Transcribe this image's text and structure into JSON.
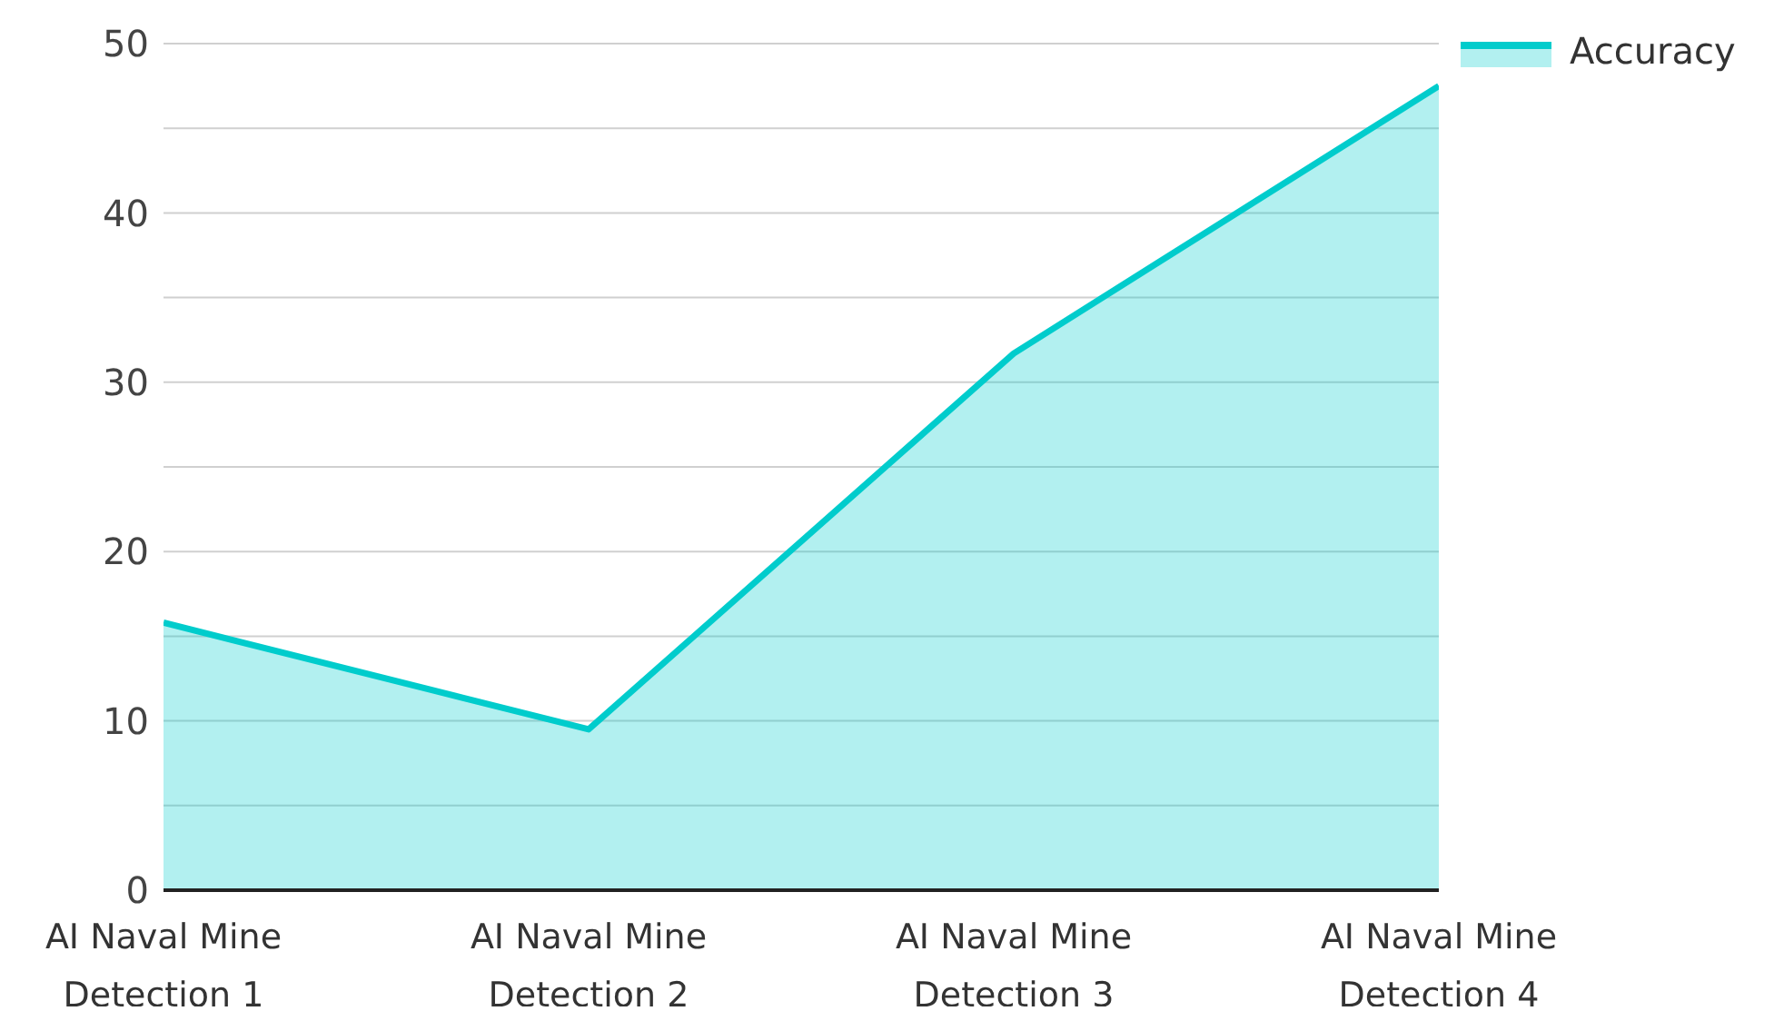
{
  "chart_data": {
    "type": "area",
    "categories": [
      "AI Naval Mine Detection 1",
      "AI Naval Mine Detection 2",
      "AI Naval Mine Detection 3",
      "AI Naval Mine Detection 4"
    ],
    "series": [
      {
        "name": "Accuracy",
        "color": "#00cccc",
        "values": [
          15.8,
          9.5,
          31.7,
          47.5
        ]
      }
    ],
    "ylim": [
      0,
      50
    ],
    "yticks": [
      0,
      {
        "value": 5,
        "label": null
      },
      10,
      {
        "value": 15,
        "label": null
      },
      20,
      {
        "value": 25,
        "label": null
      },
      30,
      {
        "value": 35,
        "label": null
      },
      40,
      {
        "value": 45,
        "label": null
      },
      50
    ],
    "grid": "y",
    "legend": "top right",
    "marker": "none"
  }
}
